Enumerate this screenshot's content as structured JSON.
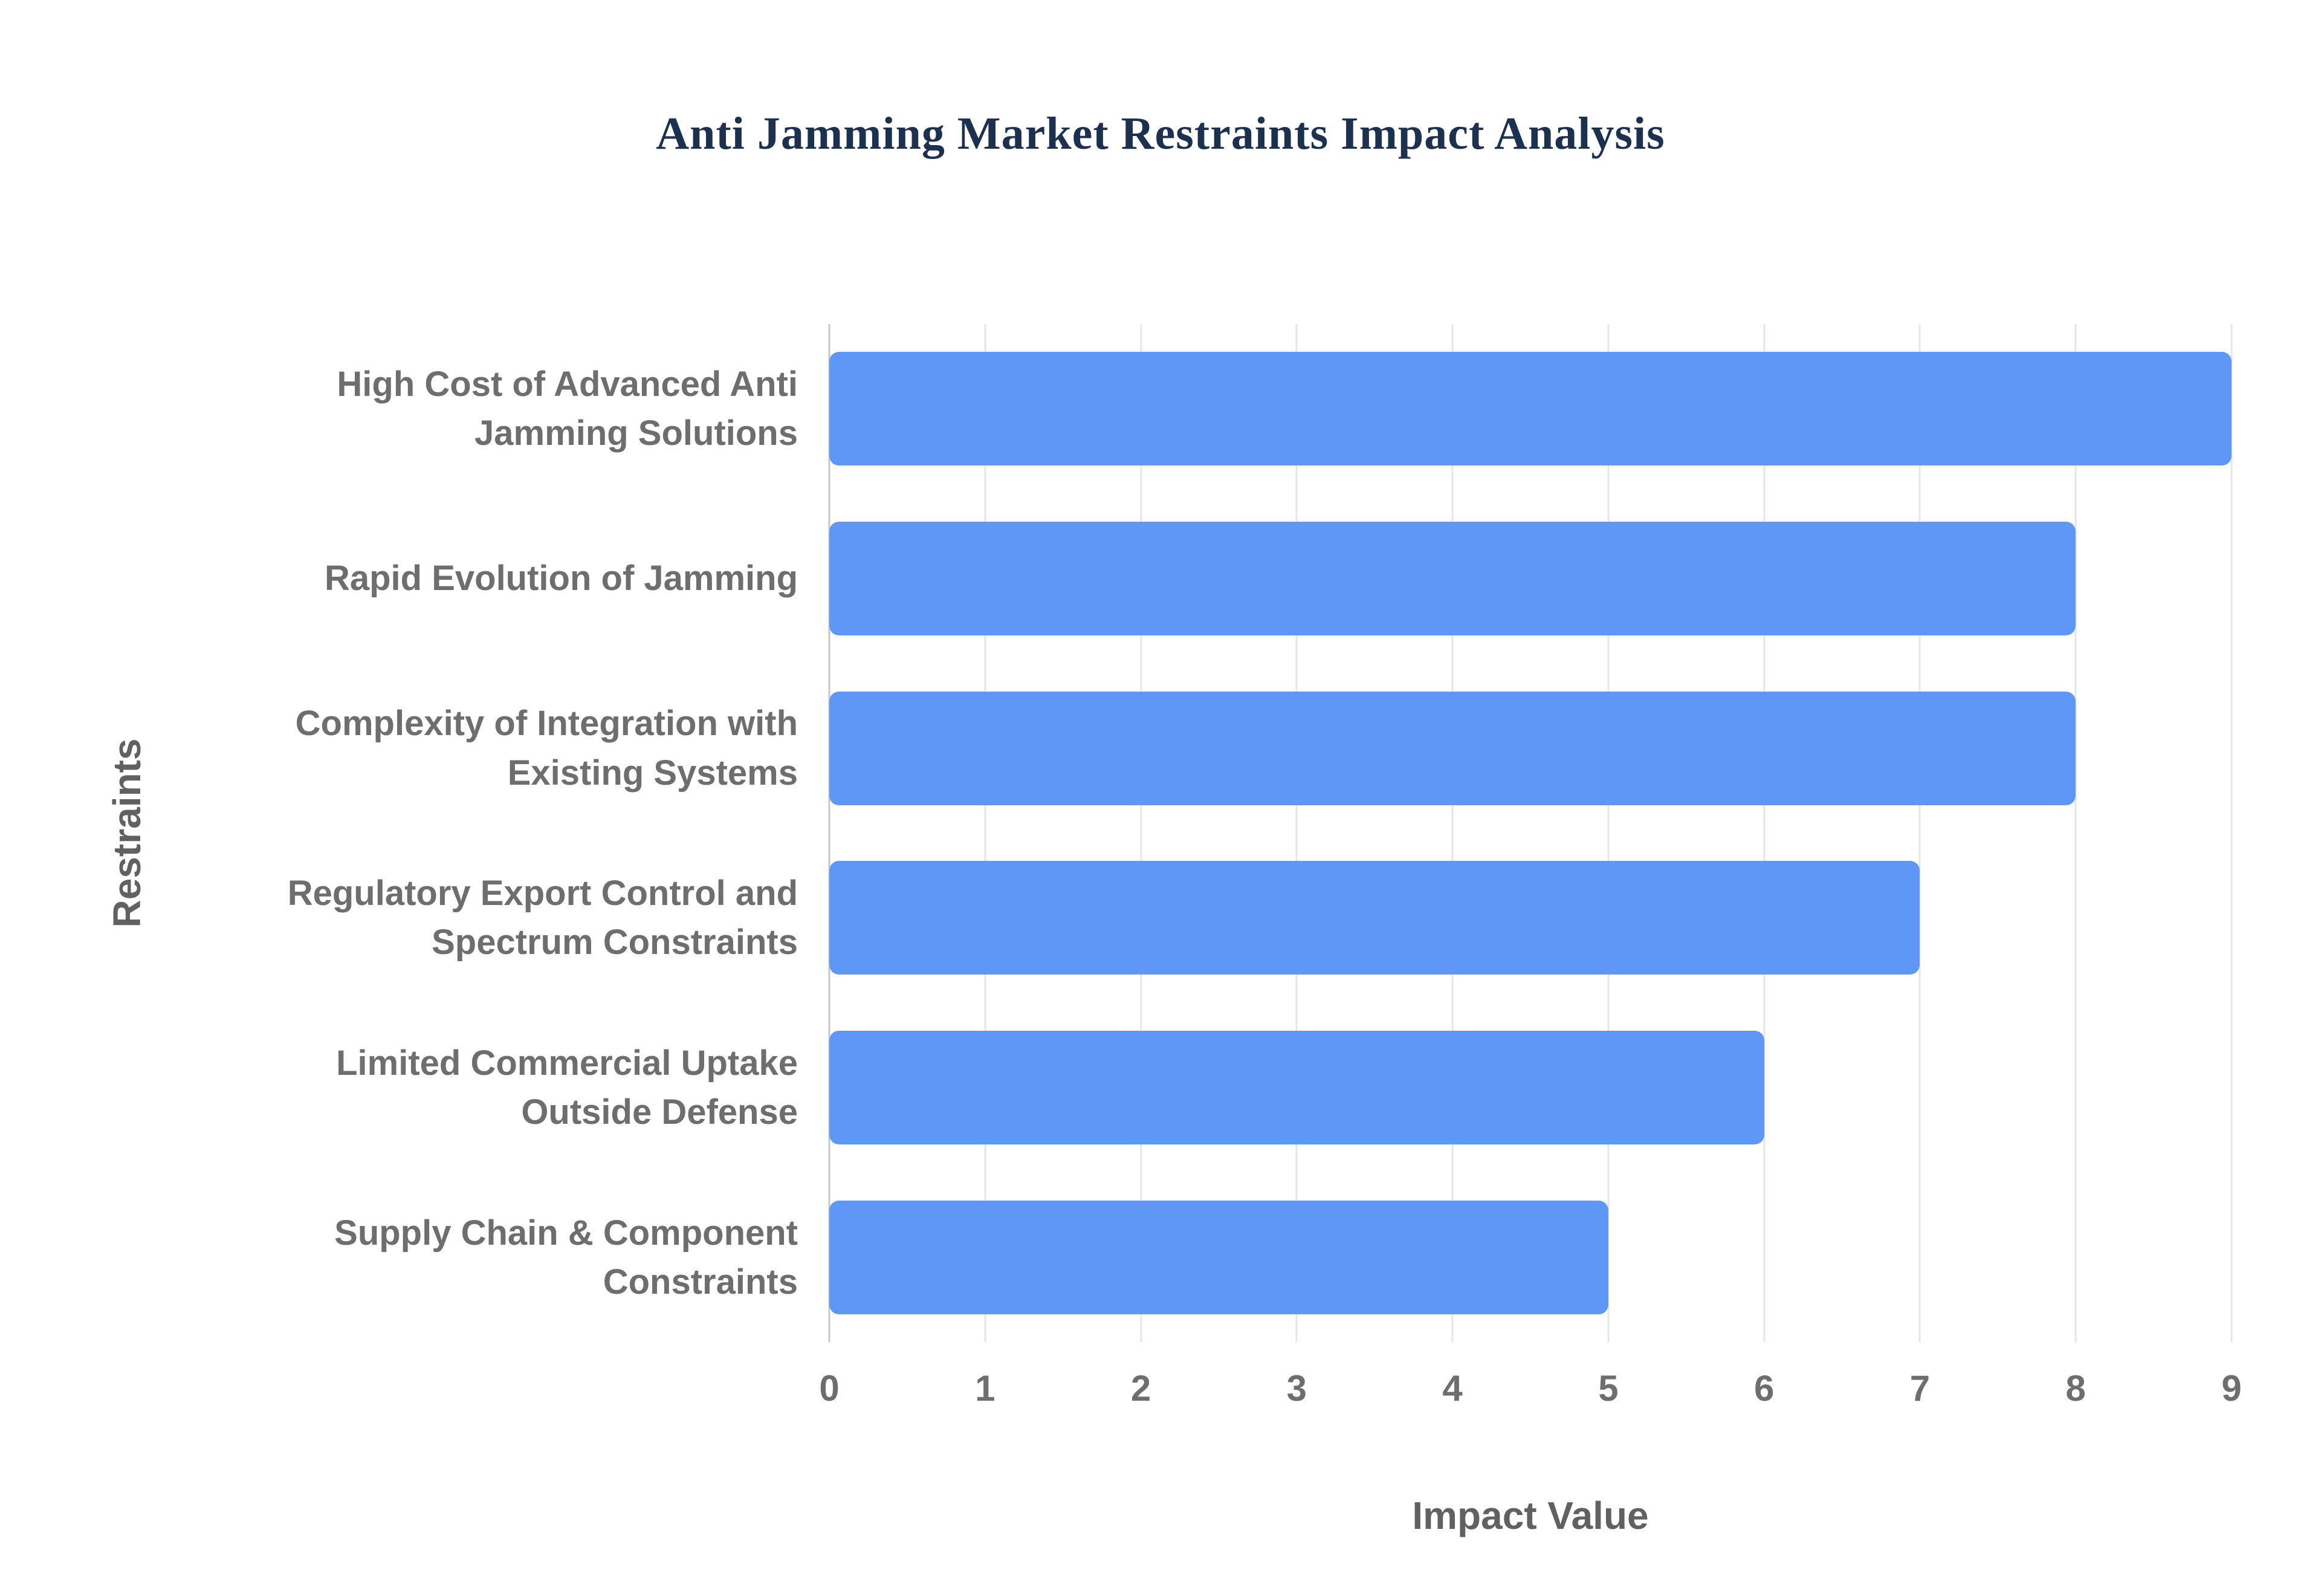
{
  "chart_data": {
    "type": "bar",
    "orientation": "horizontal",
    "title": "Anti Jamming Market Restraints Impact Analysis",
    "categories": [
      "High Cost of Advanced Anti Jamming Solutions",
      "Rapid Evolution of Jamming",
      "Complexity of Integration with Existing Systems",
      "Regulatory Export Control and Spectrum Constraints",
      "Limited Commercial Uptake Outside Defense",
      "Supply Chain & Component Constraints"
    ],
    "values": [
      9,
      8,
      8,
      7,
      6,
      5
    ],
    "xlabel": "Impact Value",
    "ylabel": "Restraints",
    "xlim": [
      0,
      9
    ],
    "xticks": [
      0,
      1,
      2,
      3,
      4,
      5,
      6,
      7,
      8,
      9
    ],
    "grid": true,
    "legend": "none",
    "bar_color": "#5e97f6",
    "title_color": "#1c3150",
    "axis_label_color": "#616161",
    "tick_label_color": "#6e6e6e",
    "gridline_color": "#e6e6e6",
    "background_color": "#ffffff"
  }
}
